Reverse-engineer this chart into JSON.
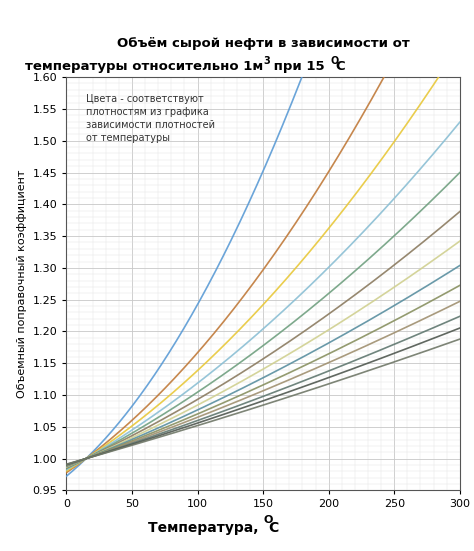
{
  "title_line1": "Объём сырой нефти в зависимости от",
  "title_line2": "температуры относительно 1м³ при 15",
  "ylabel": "Объемный поправочный коэффициент",
  "xlabel_base": "Температура, ",
  "annotation": "Цвета - соответствуют\nплотностям из графика\nзависимости плотностей\nот температуры",
  "xlim": [
    0,
    300
  ],
  "ylim": [
    0.95,
    1.6
  ],
  "xticks": [
    0,
    50,
    100,
    150,
    200,
    250,
    300
  ],
  "yticks": [
    0.95,
    1.0,
    1.05,
    1.1,
    1.15,
    1.2,
    1.25,
    1.3,
    1.35,
    1.4,
    1.45,
    1.5,
    1.55,
    1.6
  ],
  "line_colors": [
    "#5B9BD5",
    "#C07A3A",
    "#E8C83A",
    "#8BBFD4",
    "#70A080",
    "#8B7B60",
    "#D0D090",
    "#5A8FA0",
    "#889060",
    "#A09070",
    "#607870",
    "#505850",
    "#707868"
  ],
  "expansion_rates": [
    0.002,
    0.00155,
    0.00135,
    0.0012,
    0.00108,
    0.00098,
    0.0009,
    0.00083,
    0.00077,
    0.00072,
    0.00067,
    0.00063,
    0.00059
  ],
  "quad_factors": [
    2.5,
    2.0,
    1.8,
    1.6,
    1.5,
    1.4,
    1.3,
    1.2,
    1.1,
    1.0,
    0.9,
    0.8,
    0.7
  ],
  "background_color": "#FFFFFF",
  "grid_major_color": "#C8C8C8",
  "grid_minor_color": "#E0E0E0",
  "t0": 15
}
